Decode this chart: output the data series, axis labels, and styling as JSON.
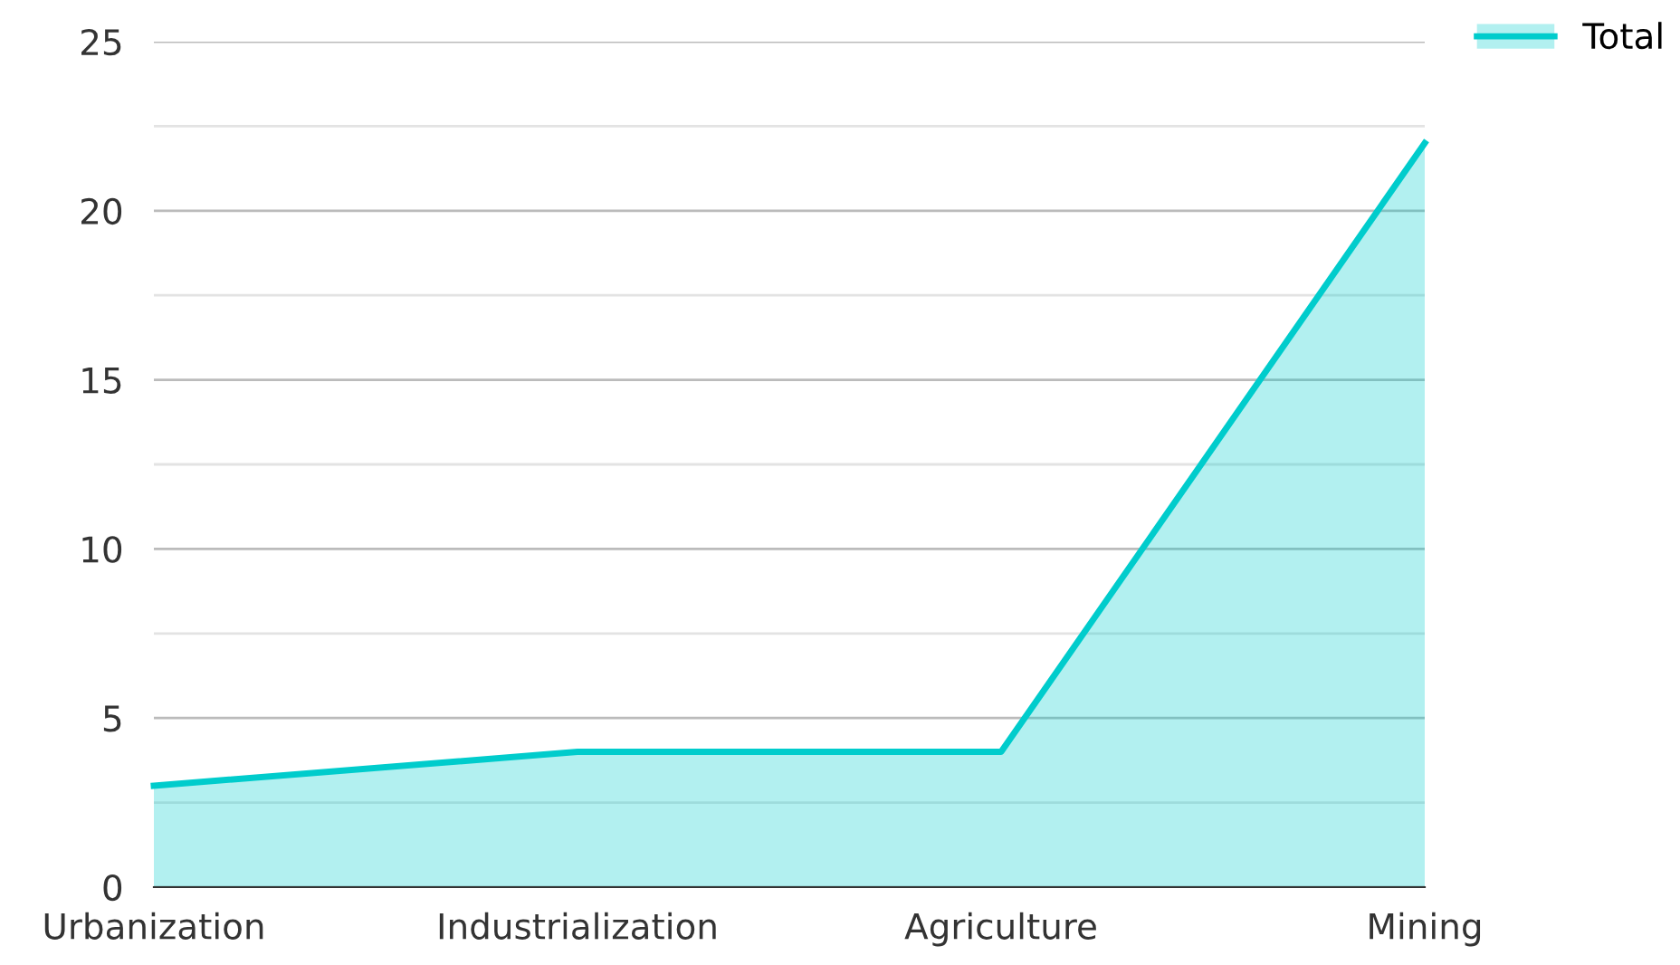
{
  "chart_data": {
    "type": "area",
    "categories": [
      "Urbanization",
      "Industrialization",
      "Agriculture",
      "Mining"
    ],
    "series": [
      {
        "name": "Total",
        "color": "#00cccc",
        "values": [
          3,
          4,
          4,
          22
        ]
      }
    ],
    "ylim": [
      0,
      25
    ],
    "yticks": [
      0,
      {
        "value": 2.5,
        "label": null
      },
      5,
      {
        "value": 7.5,
        "label": null
      },
      10,
      {
        "value": 12.5,
        "label": null
      },
      15,
      {
        "value": 17.5,
        "label": null
      },
      20,
      {
        "value": 22.5,
        "label": null
      },
      25
    ],
    "grid": "y",
    "legend": "top right"
  }
}
